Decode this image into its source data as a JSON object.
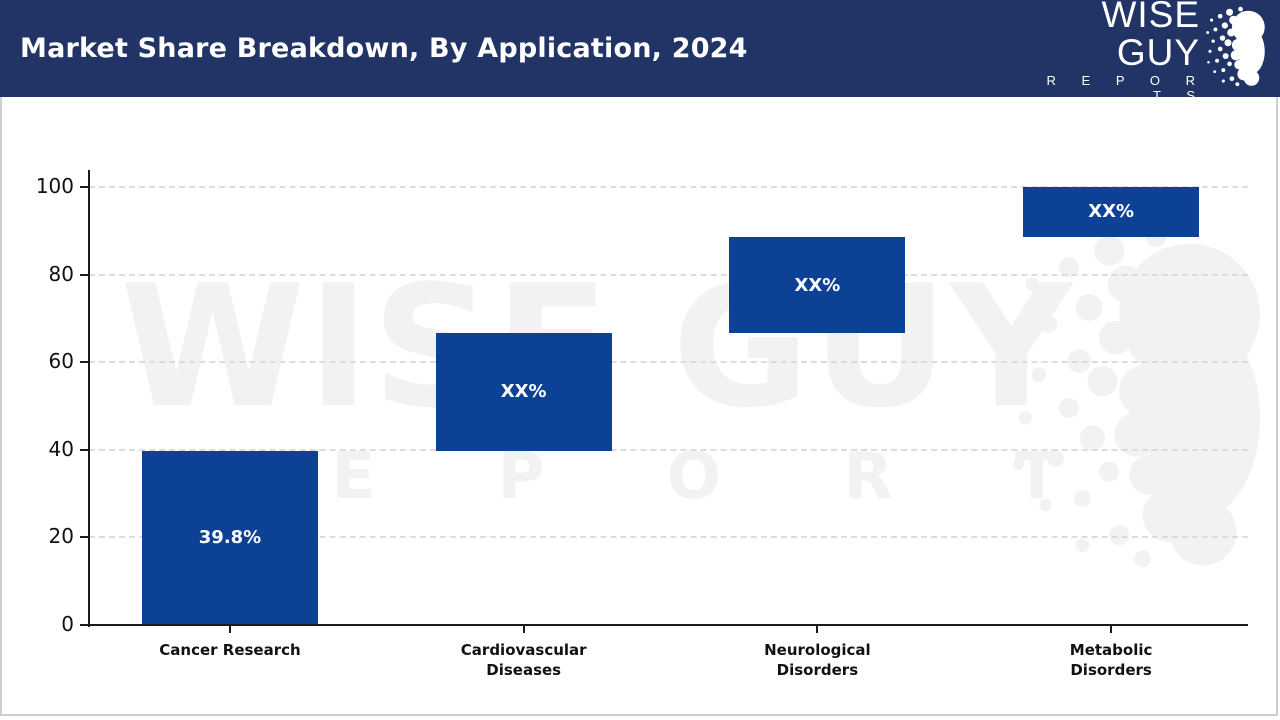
{
  "header": {
    "title": "Market Share Breakdown, By Application, 2024",
    "brand_top": "WISE GUY",
    "brand_bottom": "REPORTS"
  },
  "watermark": {
    "line1": "WISE GUY",
    "line2": "REPORTS"
  },
  "colors": {
    "header_bg": "#213465",
    "bar": "#0d4195",
    "bar_label": "#ffffff",
    "grid": "#dcdcdc",
    "axis": "#1a1a1a",
    "watermark": "#f2f2f2",
    "frame_border": "#cfcfcf"
  },
  "chart_data": {
    "type": "bar",
    "subtype": "waterfall",
    "title": "Market Share Breakdown, By Application, 2024",
    "categories": [
      "Cancer Research",
      "Cardiovascular Diseases",
      "Neurological Disorders",
      "Metabolic Disorders"
    ],
    "bars": [
      {
        "category": "Cancer Research",
        "label": "39.8%",
        "start": 0,
        "end": 39.8
      },
      {
        "category": "Cardiovascular Diseases",
        "label": "XX%",
        "start": 39.8,
        "end": 66.6
      },
      {
        "category": "Neurological Disorders",
        "label": "XX%",
        "start": 66.6,
        "end": 88.6
      },
      {
        "category": "Metabolic Disorders",
        "label": "XX%",
        "start": 88.6,
        "end": 100
      }
    ],
    "xlabel": "",
    "ylabel": "",
    "ylim": [
      0,
      100
    ],
    "yticks": [
      0,
      20,
      40,
      60,
      80,
      100
    ],
    "grid": "horizontal-dashed",
    "legend": "none"
  }
}
